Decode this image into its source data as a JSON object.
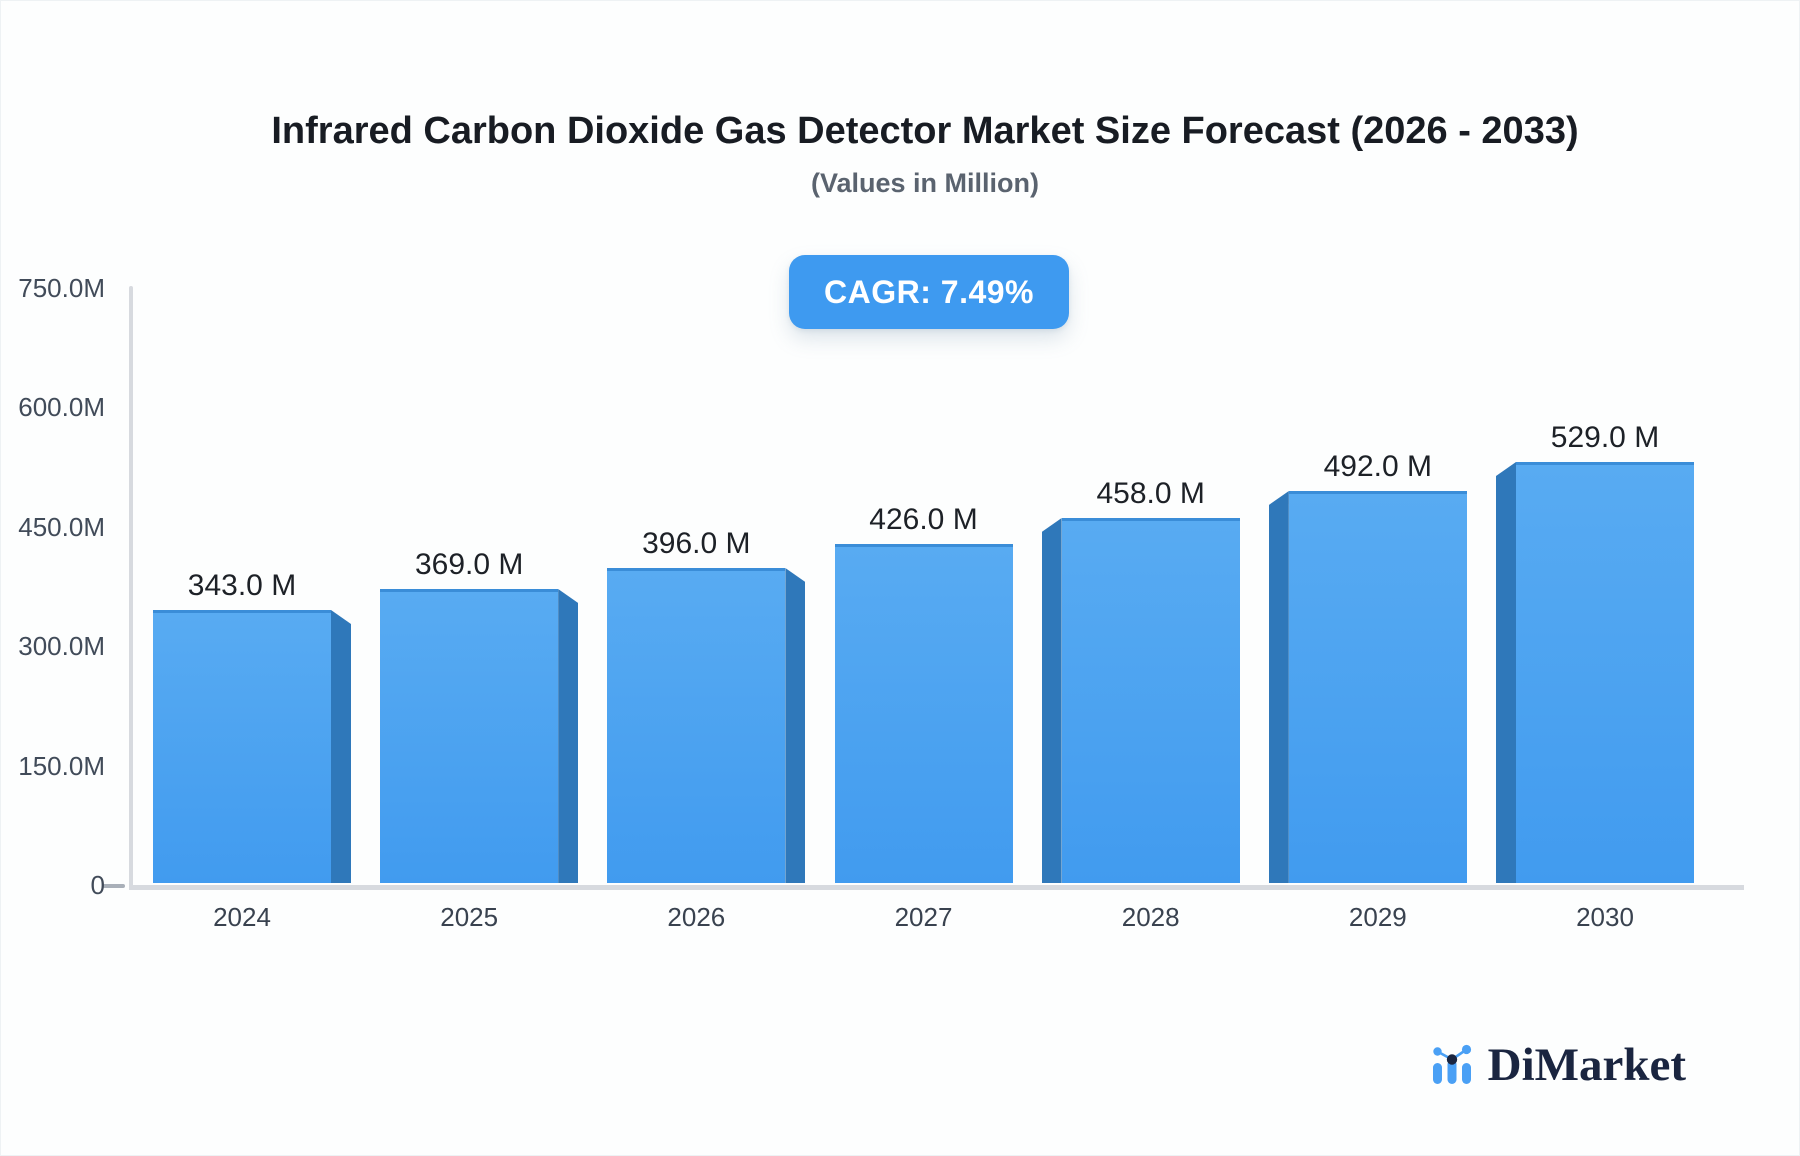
{
  "header": {
    "title": "Infrared Carbon Dioxide Gas Detector Market Size Forecast (2026 - 2033)",
    "subtitle": "(Values in Million)",
    "cagr_label": "CAGR: 7.49%"
  },
  "chart_data": {
    "type": "bar",
    "title": "Infrared Carbon Dioxide Gas Detector Market Size Forecast (2026 - 2033)",
    "subtitle": "(Values in Million)",
    "cagr_pct": 7.49,
    "categories": [
      "2024",
      "2025",
      "2026",
      "2027",
      "2028",
      "2029",
      "2030"
    ],
    "values": [
      343.0,
      369.0,
      396.0,
      426.0,
      458.0,
      492.0,
      529.0
    ],
    "value_labels": [
      "343.0 M",
      "369.0 M",
      "396.0 M",
      "426.0 M",
      "458.0 M",
      "492.0 M",
      "529.0 M"
    ],
    "y_ticks": [
      {
        "label": "750.0M",
        "value": 750
      },
      {
        "label": "600.0M",
        "value": 600
      },
      {
        "label": "450.0M",
        "value": 450
      },
      {
        "label": "300.0M",
        "value": 300
      },
      {
        "label": "150.0M",
        "value": 150
      },
      {
        "label": "0",
        "value": 0
      }
    ],
    "ylim": [
      0,
      750
    ],
    "xlabel": "",
    "ylabel": "",
    "grid": false,
    "legend": false
  },
  "branding": {
    "logo_text": "DiMarket"
  },
  "colors": {
    "bar_face_top": "#58abf2",
    "bar_face_bottom": "#419bef",
    "bar_top_edge": "#3a8dd8",
    "bar_side": "#2f78ba",
    "badge_bg": "#3e9af0",
    "badge_text": "#ffffff",
    "axis": "#d7dadf",
    "tick_text": "#414b59",
    "title_text": "#181c23",
    "subtitle_text": "#5a636f",
    "logo_blue": "#4aa0f5",
    "logo_navy": "#1a2540"
  }
}
